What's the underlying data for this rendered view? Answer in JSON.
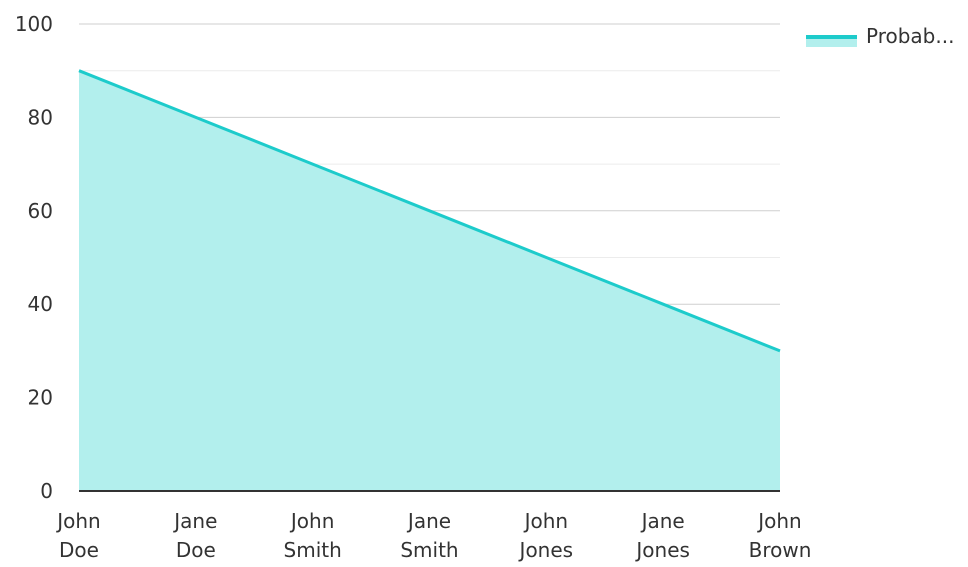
{
  "chart_data": {
    "type": "area",
    "categories": [
      [
        "John",
        "Doe"
      ],
      [
        "Jane",
        "Doe"
      ],
      [
        "John",
        "Smith"
      ],
      [
        "Jane",
        "Smith"
      ],
      [
        "John",
        "Jones"
      ],
      [
        "Jane",
        "Jones"
      ],
      [
        "John",
        "Brown"
      ]
    ],
    "series": [
      {
        "name": "Probab...",
        "values": [
          90,
          80,
          70,
          60,
          50,
          40,
          30
        ],
        "color": "#1dcbcb",
        "fill": "#b2efed"
      }
    ],
    "ylim": [
      0,
      100
    ],
    "yticks": [
      0,
      20,
      40,
      60,
      80,
      100
    ],
    "grid": true,
    "legend": "top-right"
  }
}
